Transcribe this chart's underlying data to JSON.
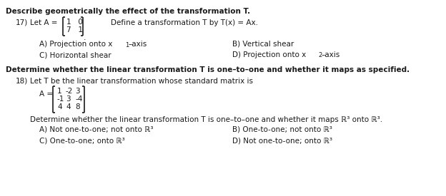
{
  "bg_color": "#ffffff",
  "figsize": [
    6.24,
    2.75
  ],
  "dpi": 100,
  "title1": "Describe geometrically the effect of the transformation T.",
  "q17_num": "17)",
  "q17_leta": "Let A =",
  "q17_matrix": [
    [
      "1",
      "0"
    ],
    [
      "7",
      "1"
    ]
  ],
  "q17_define": "Define a transformation T by T(x) = Ax.",
  "q17_A": "A) Projection onto x",
  "q17_A_sub": "1",
  "q17_A_rest": "–axis",
  "q17_B": "B) Vertical shear",
  "q17_C": "C) Horizontal shear",
  "q17_D": "D) Projection onto x",
  "q17_D_sub": "2",
  "q17_D_rest": "–axis",
  "title2": "Determine whether the linear transformation T is one–to–one and whether it maps as specified.",
  "q18_num": "18)",
  "q18_text": "Let T be the linear transformation whose standard matrix is",
  "q18_Alabel": "A =",
  "q18_matrix": [
    [
      "1",
      "-2",
      "3"
    ],
    [
      "-1",
      "3",
      "-4"
    ],
    [
      "4",
      "4",
      "8"
    ]
  ],
  "q18_subtext": "Determine whether the linear transformation T is one–to–one and whether it maps",
  "q18_subtext2": "onto",
  "q18_A": "A) Not one-to-one; not onto",
  "q18_B": "B) One-to-one; not onto",
  "q18_C": "C) One-to-one; onto",
  "q18_D": "D) Not one-to-one; onto",
  "fs": 7.5,
  "fs_bold": 7.5,
  "tc": "#1a1a1a",
  "lw": 1.2
}
